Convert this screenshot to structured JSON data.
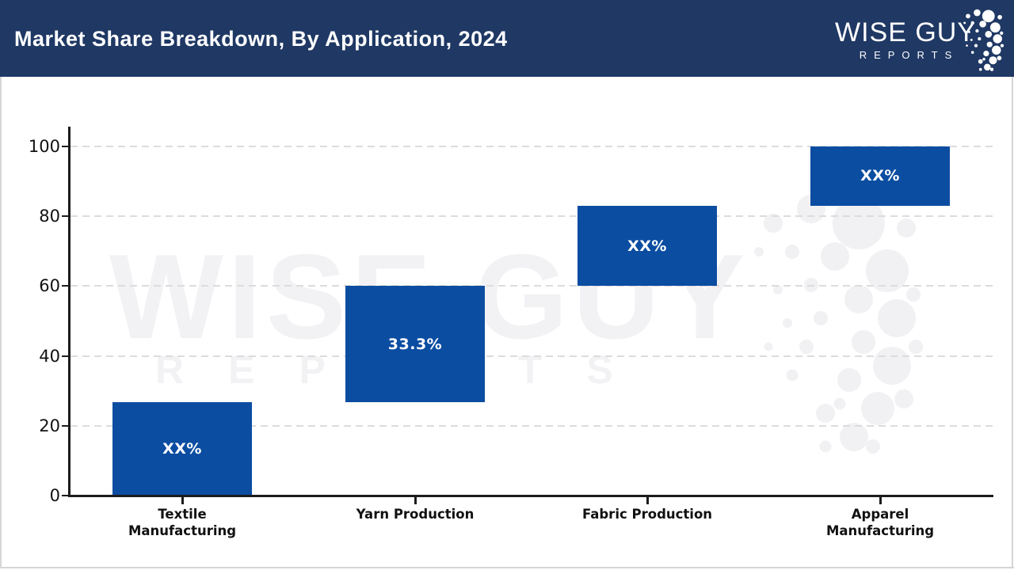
{
  "header": {
    "title": "Market Share Breakdown, By Application, 2024",
    "bg_color": "#1f3864",
    "logo": {
      "line1": "WISE GUY",
      "line2": "REPORTS"
    }
  },
  "watermark": {
    "line1": "WISE GUY",
    "line2": "REPORTS"
  },
  "chart_data": {
    "type": "bar",
    "subtype": "floating-waterfall",
    "title": "Market Share Breakdown, By Application, 2024",
    "xlabel": "",
    "ylabel": "",
    "ylim": [
      0,
      105
    ],
    "y_ticks": [
      0,
      20,
      40,
      60,
      80,
      100
    ],
    "grid": "horizontal-dashed",
    "legend": "none",
    "bar_color": "#0b4da1",
    "bar_label_color": "#ffffff",
    "categories": [
      "Textile Manufacturing",
      "Yarn Production",
      "Fabric Production",
      "Apparel Manufacturing"
    ],
    "bars": [
      {
        "category": "Textile Manufacturing",
        "lines": [
          "Textile",
          "Manufacturing"
        ],
        "start": 0,
        "end": 26.7,
        "value": 26.7,
        "label": "XX%"
      },
      {
        "category": "Yarn Production",
        "lines": [
          "Yarn Production"
        ],
        "start": 26.7,
        "end": 60,
        "value": 33.3,
        "label": "33.3%"
      },
      {
        "category": "Fabric Production",
        "lines": [
          "Fabric Production"
        ],
        "start": 60,
        "end": 83,
        "value": 23,
        "label": "XX%"
      },
      {
        "category": "Apparel Manufacturing",
        "lines": [
          "Apparel",
          "Manufacturing"
        ],
        "start": 83,
        "end": 100,
        "value": 17,
        "label": "XX%"
      }
    ]
  }
}
